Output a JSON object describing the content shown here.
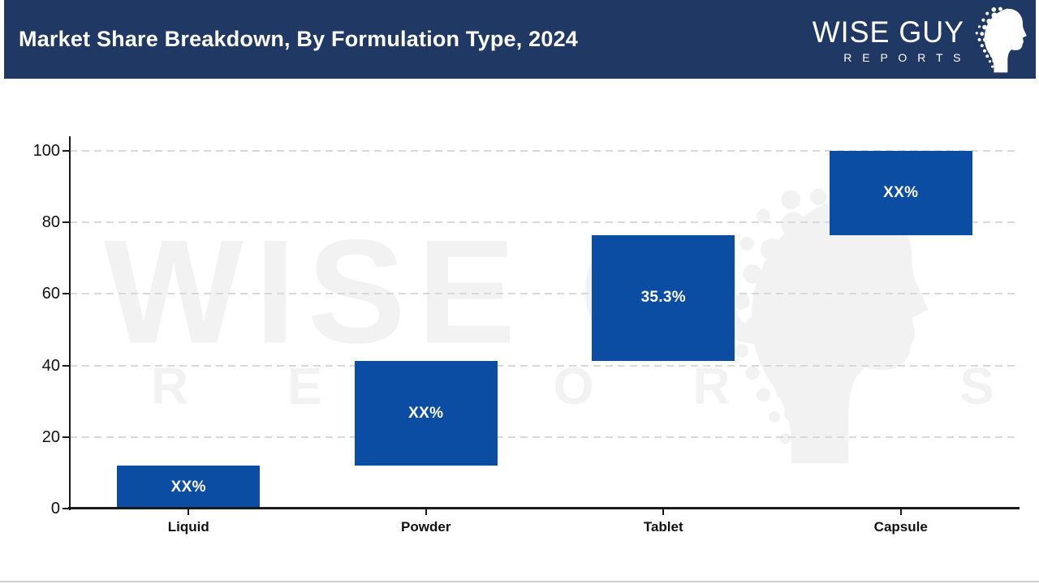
{
  "header": {
    "title": "Market Share Breakdown, By Formulation Type, 2024",
    "logo": {
      "line1": "WISE GUY",
      "line2": "R E P O R T S"
    }
  },
  "watermark": {
    "line1": "WISE GU",
    "line2": "R E P O R T S"
  },
  "icons": {
    "logo_face": "face-profile-dots-icon",
    "watermark_face": "face-profile-dots-icon"
  },
  "colors": {
    "header_bg": "#1f3864",
    "title_text": "#ffffff",
    "bar": "#0b4da2",
    "bar_label": "#ffffff",
    "axis": "#1a1a1a",
    "grid": "#d9d9d9",
    "watermark": "#f2f2f2",
    "tick_text": "#111111",
    "bottom_rule": "#cfcfcf"
  },
  "chart_data": {
    "type": "bar",
    "subtype": "floating-waterfall",
    "title": "Market Share Breakdown, By Formulation Type, 2024",
    "xlabel": "",
    "ylabel": "",
    "categories": [
      "Liquid",
      "Powder",
      "Tablet",
      "Capsule"
    ],
    "segments": [
      {
        "category": "Liquid",
        "start": 0,
        "end": 12.0,
        "value": 12.0,
        "label": "XX%"
      },
      {
        "category": "Powder",
        "start": 12.0,
        "end": 41.2,
        "value": 29.2,
        "label": "XX%"
      },
      {
        "category": "Tablet",
        "start": 41.2,
        "end": 76.5,
        "value": 35.3,
        "label": "35.3%"
      },
      {
        "category": "Capsule",
        "start": 76.5,
        "end": 100,
        "value": 23.5,
        "label": "XX%"
      }
    ],
    "yticks": [
      0,
      20,
      40,
      60,
      80,
      100
    ],
    "ylim": [
      0,
      104
    ],
    "grid": "horizontal-dashed",
    "legend": "none",
    "bar_value_position": "center-inside"
  }
}
